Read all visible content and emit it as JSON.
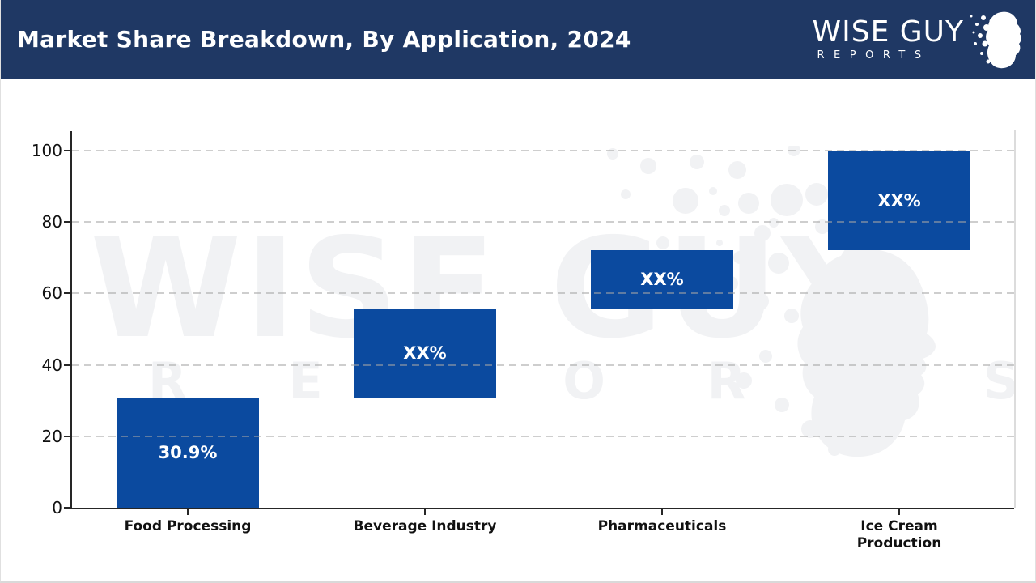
{
  "header": {
    "title": "Market Share Breakdown, By Application, 2024",
    "logo": {
      "primary": "WISE GUY",
      "secondary": "REPORTS"
    }
  },
  "watermark": {
    "primary": "WISE GUY",
    "secondary": "R E P O R T S"
  },
  "chart_data": {
    "type": "bar",
    "subtype": "waterfall",
    "title": "Market Share Breakdown, By Application, 2024",
    "categories": [
      "Food Processing",
      "Beverage Industry",
      "Pharmaceuticals",
      "Ice Cream Production"
    ],
    "segments": [
      {
        "category": "Food Processing",
        "start": 0,
        "end": 30.9,
        "label": "30.9%"
      },
      {
        "category": "Beverage Industry",
        "start": 30.9,
        "end": 55.6,
        "label": "XX%"
      },
      {
        "category": "Pharmaceuticals",
        "start": 55.6,
        "end": 72.1,
        "label": "XX%"
      },
      {
        "category": "Ice Cream Production",
        "start": 72.1,
        "end": 100,
        "label": "XX%"
      }
    ],
    "xlabel": "",
    "ylabel": "",
    "ylim": [
      0,
      100
    ],
    "yticks": [
      0,
      20,
      40,
      60,
      80,
      100
    ],
    "grid": "horizontal-dashed",
    "legend": "none",
    "bar_color": "#0b4a9f",
    "bar_label_color": "#ffffff"
  },
  "colors": {
    "header_bg": "#1f3864",
    "bar": "#0b4a9f",
    "axis": "#262626",
    "grid": "#d8d8d8",
    "watermark": "#f1f2f4",
    "title_text": "#ffffff"
  }
}
